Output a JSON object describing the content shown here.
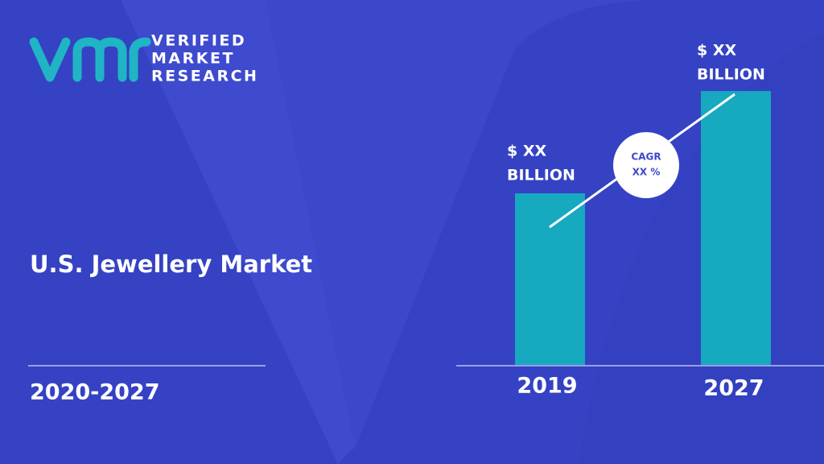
{
  "logo": {
    "lines": [
      "VERIFIED",
      "MARKET",
      "RESEARCH"
    ]
  },
  "title": "U.S. Jewellery Market",
  "period": "2020-2027",
  "bars": [
    {
      "year": "2019",
      "label_lines": [
        "$ XX",
        "BILLION"
      ]
    },
    {
      "year": "2027",
      "label_lines": [
        "$ XX",
        "BILLION"
      ]
    }
  ],
  "cagr": {
    "lines": [
      "CAGR",
      "XX %"
    ]
  }
}
